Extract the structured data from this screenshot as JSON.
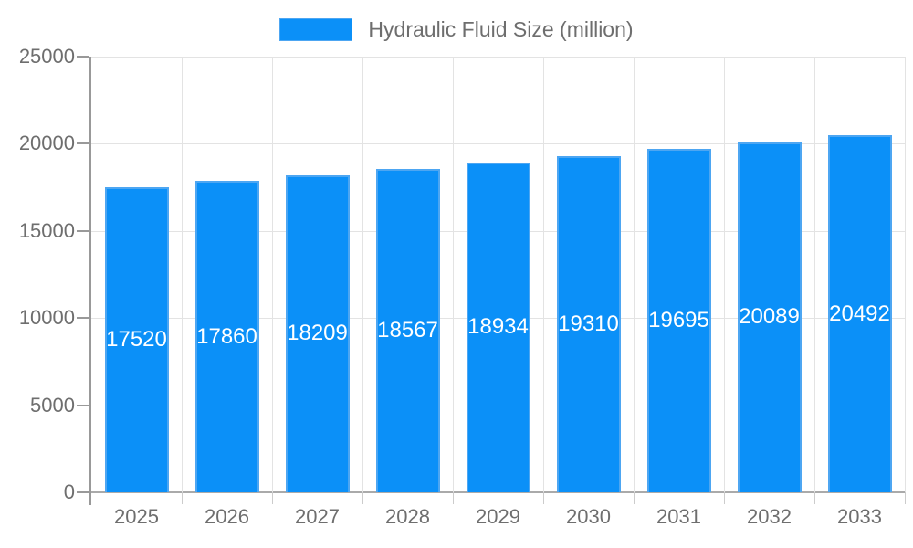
{
  "chart_data": {
    "type": "bar",
    "title": "",
    "series_name": "Hydraulic Fluid Size (million)",
    "categories": [
      "2025",
      "2026",
      "2027",
      "2028",
      "2029",
      "2030",
      "2031",
      "2032",
      "2033"
    ],
    "values": [
      17520,
      17860,
      18209,
      18567,
      18934,
      19310,
      19695,
      20089,
      20492
    ],
    "xlabel": "",
    "ylabel": "",
    "ylim": [
      0,
      25000
    ],
    "y_ticks": [
      0,
      5000,
      10000,
      15000,
      20000,
      25000
    ],
    "grid": true,
    "legend_position": "top",
    "bar_labels_inside": "centered",
    "colors": {
      "bar_fill": "#0b90f8",
      "bar_border": "#4da6f2",
      "grid_line": "#e3e3e3",
      "axis_line": "#999999",
      "baseline": "#aaaaaa",
      "minor_tick": "#cccccc",
      "tick_label": "#6e6e6e",
      "bar_label": "#ffffff",
      "background": "#ffffff"
    }
  }
}
